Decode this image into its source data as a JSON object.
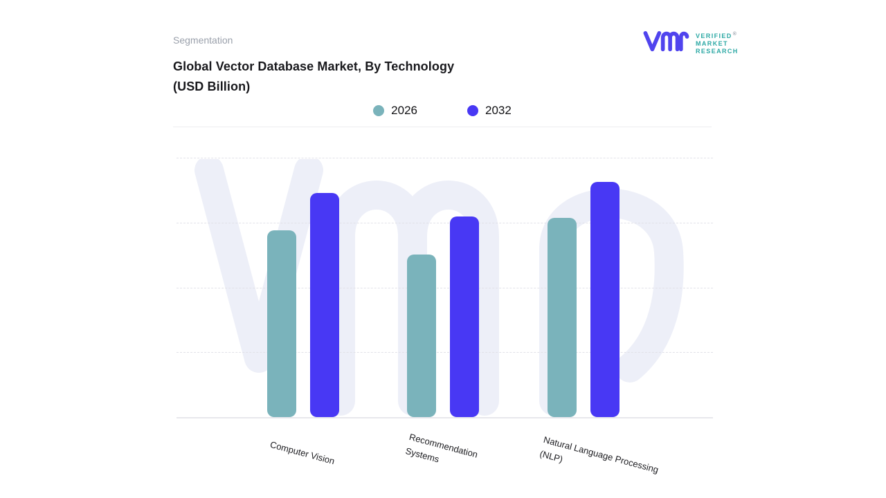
{
  "page": {
    "eyebrow": "Segmentation"
  },
  "brand": {
    "name": "Verified Market Research",
    "lines": [
      "VERIFIED",
      "MARKET",
      "RESEARCH"
    ],
    "registered_mark": "®",
    "glyph_color": "#5044ee",
    "text_color": "#2ba8a4"
  },
  "watermark": {
    "name": "vmr-monogram-watermark",
    "color": "#edeff8"
  },
  "chart_data": {
    "type": "bar",
    "title": "Global Vector Database Market, By Technology (USD Billion)",
    "title_lines": [
      "Global Vector Database Market, By Technology",
      "(USD Billion)"
    ],
    "categories": [
      "Computer Vision",
      "Recommendation Systems",
      "Natural Language Processing (NLP)"
    ],
    "series": [
      {
        "name": "2026",
        "color": "#7ab3bb",
        "values": [
          2.88,
          2.51,
          3.07
        ]
      },
      {
        "name": "2032",
        "color": "#4838f4",
        "values": [
          3.46,
          3.09,
          3.63
        ]
      }
    ],
    "xlabel": "",
    "ylabel": "",
    "ylim": [
      0,
      4
    ],
    "value_units": "relative gridline units (y-axis shown without numeric tick labels)",
    "grid": "horizontal dashed lines, no y tick labels, no x tick marks",
    "legend_position": "top-center",
    "x_label_rotation_deg": 15
  }
}
